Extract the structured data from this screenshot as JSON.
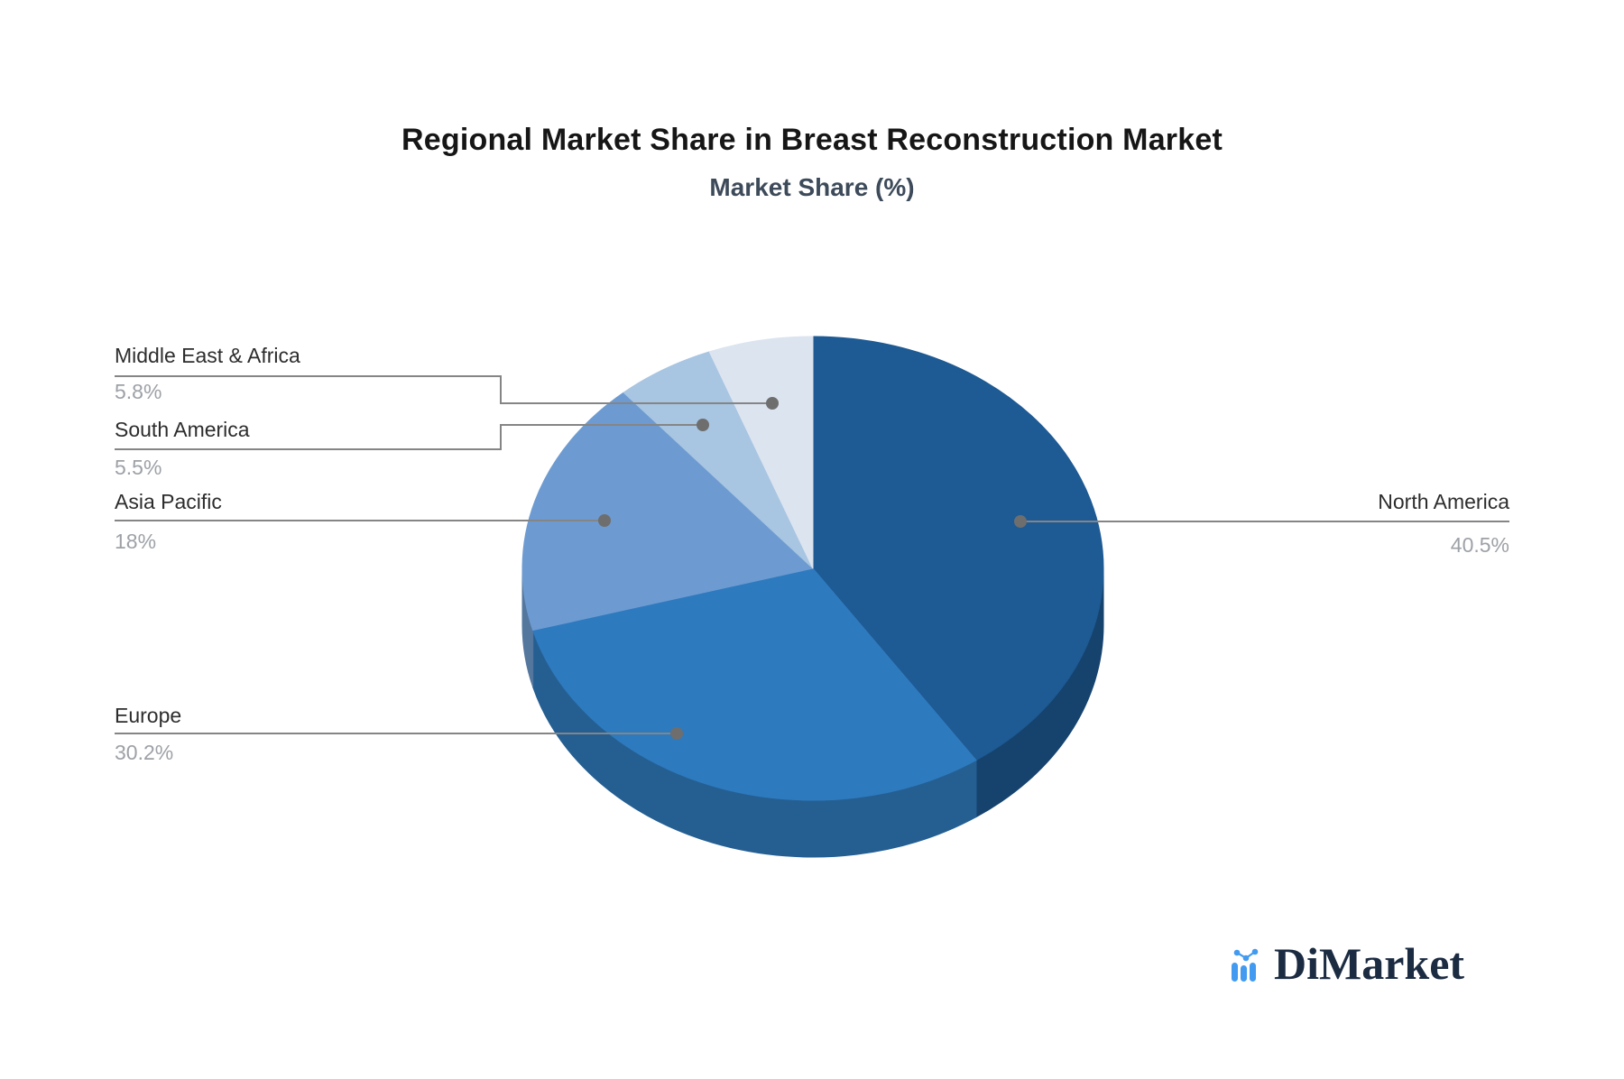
{
  "title": "Regional Market Share in Breast Reconstruction Market",
  "subtitle": "Market Share (%)",
  "brand": {
    "name": "DiMarket",
    "icon": "bar-chart-logo-icon",
    "icon_color": "#429BF0",
    "text_color": "#1B2B42"
  },
  "style": {
    "leader_line_color": "#858585",
    "leader_dot_color": "#6E6E6E",
    "label_color": "#2D2D2D",
    "value_color": "#9DA1A6",
    "background": "#FFFFFF"
  },
  "chart_data": {
    "type": "pie",
    "projection": "3d",
    "title": "Regional Market Share in Breast Reconstruction Market",
    "subtitle": "Market Share (%)",
    "unit": "percent",
    "start_angle_deg": 0,
    "direction": "clockwise",
    "legend_position": "leader-labels",
    "slices": [
      {
        "label": "North America",
        "value": 40.5,
        "display": "40.5%",
        "color": "#1E5A93",
        "side_color": "#16436E"
      },
      {
        "label": "Europe",
        "value": 30.2,
        "display": "30.2%",
        "color": "#2E7ABE",
        "side_color": "#255F92"
      },
      {
        "label": "Asia Pacific",
        "value": 18,
        "display": "18%",
        "color": "#6D9BD1",
        "side_color": "#54779E"
      },
      {
        "label": "South America",
        "value": 5.5,
        "display": "5.5%",
        "color": "#A8C5E2",
        "side_color": "#7F98AF"
      },
      {
        "label": "Middle East & Africa",
        "value": 5.8,
        "display": "5.8%",
        "color": "#DCE4F0",
        "side_color": "#A9B4C4"
      }
    ]
  }
}
